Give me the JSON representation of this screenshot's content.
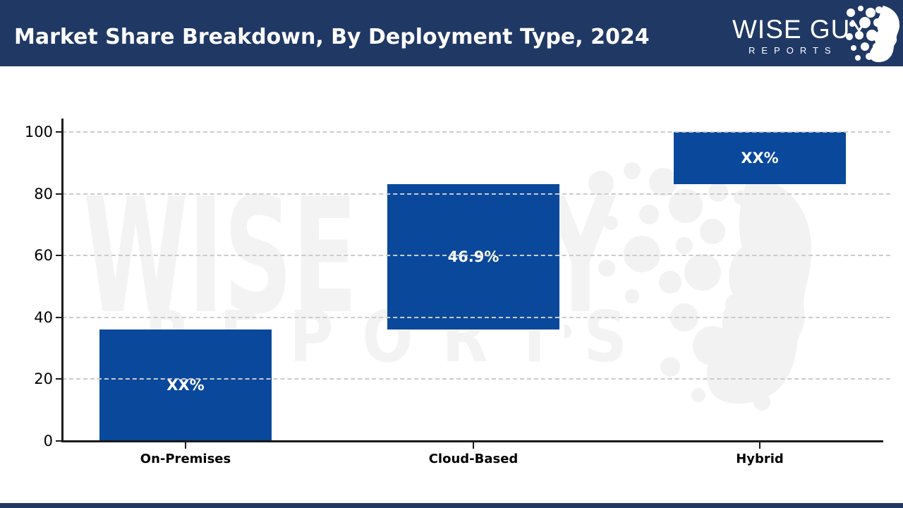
{
  "header": {
    "title": "Market Share Breakdown, By Deployment Type, 2024",
    "logo_line1": "WISE GUY",
    "logo_line2": "REPORTS"
  },
  "watermark": {
    "line1": "WISE GUY",
    "line2": "REPORTS"
  },
  "chart_data": {
    "type": "bar",
    "subtype": "waterfall-floating-bars",
    "title": "Market Share Breakdown, By Deployment Type, 2024",
    "categories": [
      "On-Premises",
      "Cloud-Based",
      "Hybrid"
    ],
    "bars": [
      {
        "category": "On-Premises",
        "label": "XX%",
        "base": 0,
        "top": 36.2
      },
      {
        "category": "Cloud-Based",
        "label": "46.9%",
        "base": 36.2,
        "top": 83.1
      },
      {
        "category": "Hybrid",
        "label": "XX%",
        "base": 83.1,
        "top": 100
      }
    ],
    "ylim": [
      0,
      100
    ],
    "yticks": [
      0,
      20,
      40,
      60,
      80,
      100
    ],
    "xlabel": "",
    "ylabel": "",
    "legend": "none",
    "grid": {
      "axis": "y",
      "style": "dashed",
      "color": "#cbcbcb"
    },
    "bar_color": "#0a489c"
  },
  "colors": {
    "header_bg": "#203864",
    "footer_bg": "#203864",
    "bar": "#0a489c",
    "grid": "#cbcbcb",
    "watermark": "#f3f3f3",
    "title_text": "#ffffff",
    "axis_text": "#000000"
  }
}
